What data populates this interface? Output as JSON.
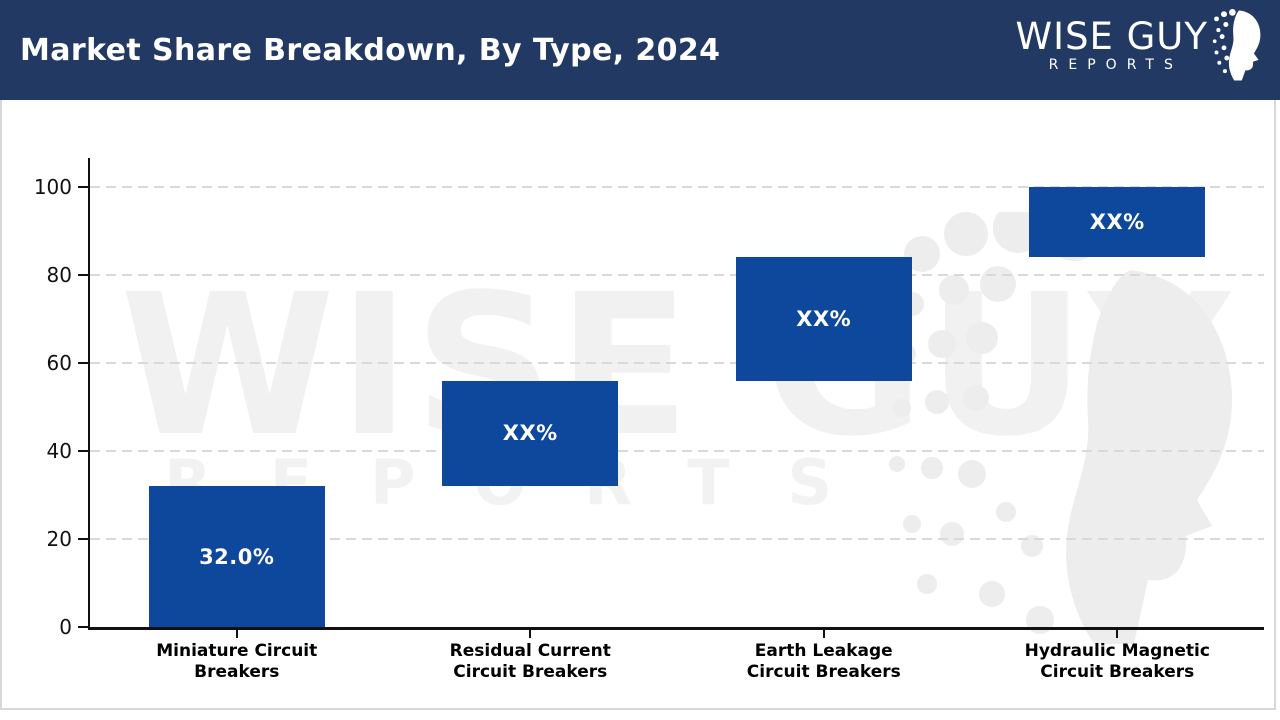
{
  "header": {
    "title": "Market Share Breakdown, By Type, 2024",
    "logo": {
      "line1": "WISE GUY",
      "line2": "REPORTS"
    }
  },
  "watermark": {
    "line1": "WISE GUY",
    "line2": "REPORTS"
  },
  "colors": {
    "header_bg": "#223A63",
    "bar": "#0D489C",
    "grid": "#D9D9D9",
    "axis": "#111111",
    "bar_label": "#FFFFFF",
    "watermark": "#F1F1F1",
    "card_border": "#D7D7D7"
  },
  "chart_data": {
    "type": "bar",
    "subtype": "waterfall",
    "title": "Market Share Breakdown, By Type, 2024",
    "xlabel": "",
    "ylabel": "",
    "ylim": [
      0,
      106
    ],
    "yticks": [
      0,
      20,
      40,
      60,
      80,
      100
    ],
    "grid": "horizontal-dashed",
    "legend": "none",
    "categories": [
      "Miniature Circuit Breakers",
      "Residual Current Circuit Breakers",
      "Earth Leakage Circuit Breakers",
      "Hydraulic Magnetic Circuit Breakers"
    ],
    "segments": [
      {
        "category": [
          "Miniature Circuit",
          "Breakers"
        ],
        "start": 0,
        "end": 32,
        "value": 32,
        "label": "32.0%"
      },
      {
        "category": [
          "Residual Current",
          "Circuit Breakers"
        ],
        "start": 32,
        "end": 56,
        "value": 24,
        "label": "XX%"
      },
      {
        "category": [
          "Earth Leakage",
          "Circuit Breakers"
        ],
        "start": 56,
        "end": 84,
        "value": 28,
        "label": "XX%"
      },
      {
        "category": [
          "Hydraulic Magnetic",
          "Circuit Breakers"
        ],
        "start": 84,
        "end": 100,
        "value": 16,
        "label": "XX%"
      }
    ]
  }
}
